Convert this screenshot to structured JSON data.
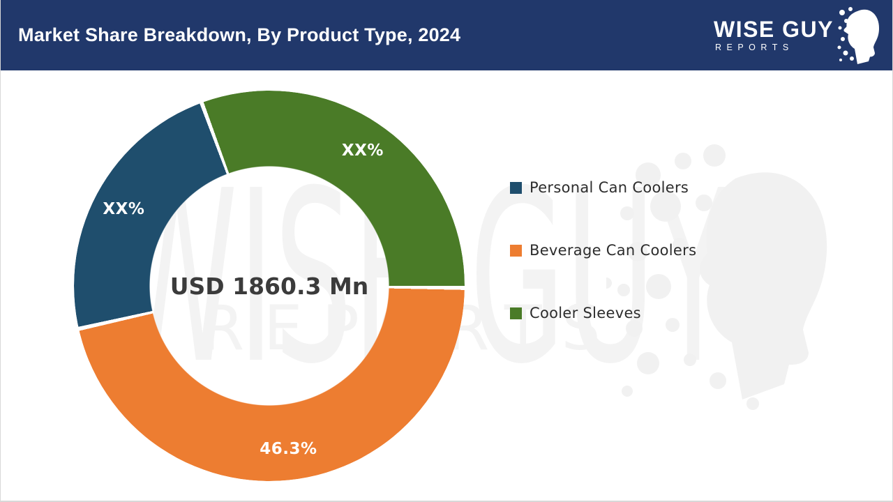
{
  "header": {
    "title": "Market Share Breakdown, By Product Type, 2024",
    "logo": {
      "line1": "WISE GUY",
      "line2": "REPORTS"
    }
  },
  "chart_data": {
    "type": "pie",
    "subtype": "donut",
    "title": "Market Share Breakdown, By Product Type, 2024",
    "center_label": "USD 1860.3 Mn",
    "series": [
      {
        "name": "Personal Can Coolers",
        "label": "XX%",
        "value_pct_est": 22.9,
        "color": "#1f4e6d"
      },
      {
        "name": "Beverage Can Coolers",
        "label": "46.3%",
        "value_pct_est": 46.3,
        "color": "#ed7d31"
      },
      {
        "name": "Cooler Sleeves",
        "label": "XX%",
        "value_pct_est": 30.8,
        "color": "#4a7b27"
      }
    ],
    "legend_position": "right",
    "segment_draw_order": [
      1,
      0,
      2
    ],
    "start_angle": "east",
    "direction": "clockwise"
  },
  "watermark": {
    "line1": "WISE GUY",
    "line2": "REPORTS"
  },
  "colors": {
    "header_bg": "#21386b",
    "page_border": "#d8d8d8",
    "center_text": "#3b3b3b",
    "legend_text": "#2d2d2d",
    "slice_label_text": "#ffffff",
    "watermark": "#f3f3f3"
  }
}
